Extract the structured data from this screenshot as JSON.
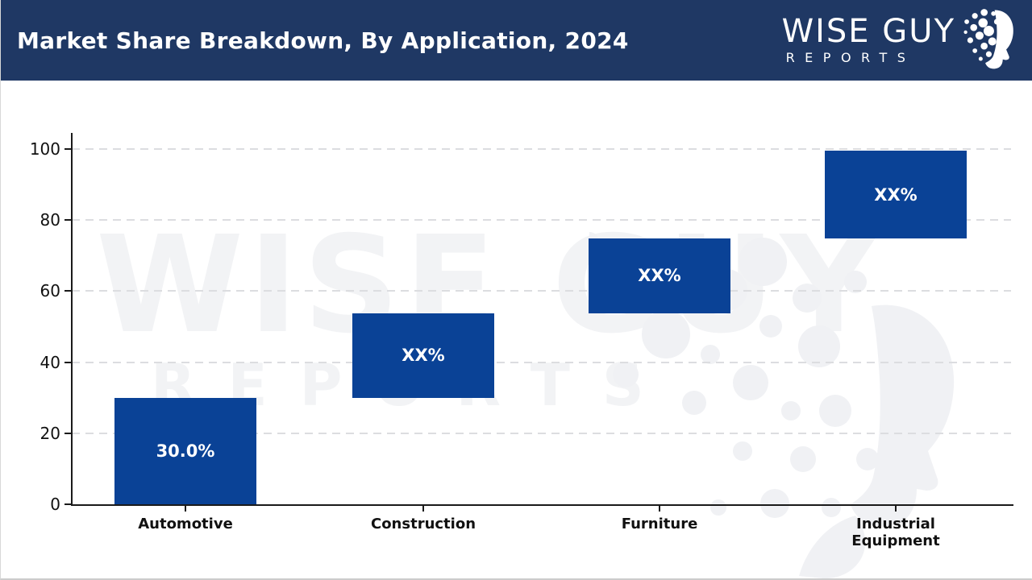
{
  "header": {
    "title": "Market Share Breakdown, By Application, 2024",
    "logo": {
      "line1": "WISE GUY",
      "line2": "REPORTS"
    }
  },
  "watermark": {
    "line1": "WISE GUY",
    "line2": "REPORTS"
  },
  "colors": {
    "header_bg": "#1f3864",
    "bar": "#0a4296",
    "watermark": "#f2f3f5",
    "grid": "#dcdde0",
    "axis": "#1a1a1a",
    "bar_label": "#ffffff"
  },
  "chart_data": {
    "type": "bar",
    "subtype": "waterfall",
    "title": "Market Share Breakdown, By Application, 2024",
    "xlabel": "",
    "ylabel": "",
    "categories": [
      "Automotive",
      "Construction",
      "Furniture",
      "Industrial Equipment"
    ],
    "category_lines": [
      [
        "Automotive"
      ],
      [
        "Construction"
      ],
      [
        "Furniture"
      ],
      [
        "Industrial",
        "Equipment"
      ]
    ],
    "segments": [
      {
        "category": "Automotive",
        "start": 0,
        "end": 30,
        "value": 30.0,
        "label": "30.0%"
      },
      {
        "category": "Construction",
        "start": 30,
        "end": 53.8,
        "value": 23.8,
        "label": "XX%"
      },
      {
        "category": "Furniture",
        "start": 53.8,
        "end": 74.8,
        "value": 21.0,
        "label": "XX%"
      },
      {
        "category": "Industrial Equipment",
        "start": 74.8,
        "end": 99.5,
        "value": 24.7,
        "label": "XX%"
      }
    ],
    "y_ticks": [
      0,
      20,
      40,
      60,
      80,
      100
    ],
    "ylim": [
      0,
      104
    ],
    "grid": true,
    "legend": false,
    "bar_color": "#0a4296"
  }
}
